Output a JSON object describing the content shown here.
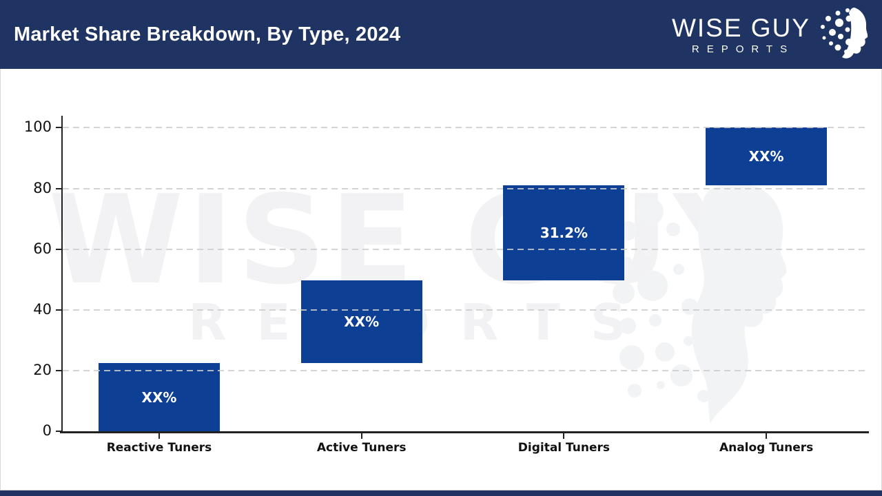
{
  "header": {
    "title": "Market Share Breakdown, By Type, 2024",
    "logo_line1": "WISE GUY",
    "logo_line2": "REPORTS"
  },
  "watermark": {
    "line1": "WISE GUY",
    "line2": "REPORTS"
  },
  "chart_data": {
    "type": "bar",
    "subtype": "waterfall",
    "title": "Market Share Breakdown, By Type, 2024",
    "categories": [
      "Reactive Tuners",
      "Active Tuners",
      "Digital Tuners",
      "Analog Tuners"
    ],
    "segments": [
      {
        "category": "Reactive Tuners",
        "start": 0,
        "end": 22.4,
        "label": "XX%"
      },
      {
        "category": "Active Tuners",
        "start": 22.4,
        "end": 49.8,
        "label": "XX%"
      },
      {
        "category": "Digital Tuners",
        "start": 49.8,
        "end": 81.0,
        "label": "31.2%"
      },
      {
        "category": "Analog Tuners",
        "start": 81.0,
        "end": 100,
        "label": "XX%"
      }
    ],
    "yticks": [
      0,
      20,
      40,
      60,
      80,
      100
    ],
    "ylim": [
      0,
      104
    ],
    "xlabel": "",
    "ylabel": "",
    "grid": "horizontal-dashed",
    "legend": "none"
  },
  "colors": {
    "header_bg": "#1f3463",
    "footer_bg": "#1f3463",
    "bar": "#0d3f94",
    "grid": "#d8d8d8",
    "axis": "#1a1a1a",
    "watermark": "#f2f2f4",
    "title_text": "#ffffff",
    "bar_label_text": "#ffffff"
  }
}
